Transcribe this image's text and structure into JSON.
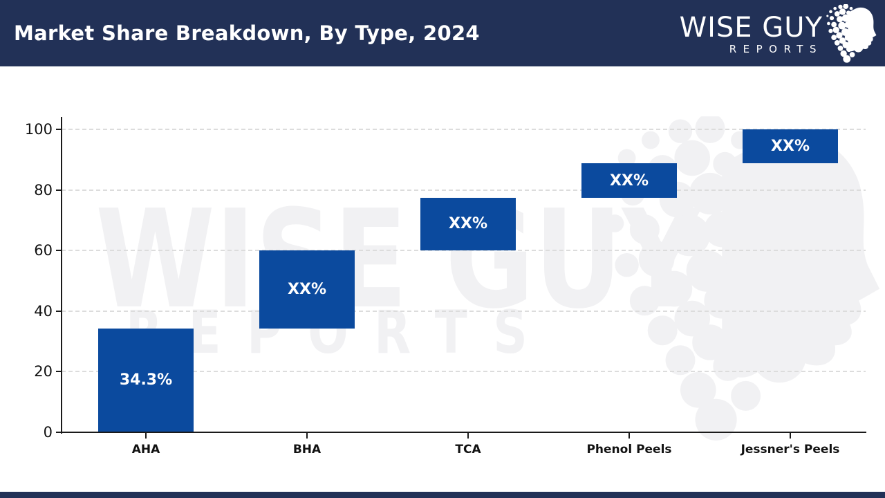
{
  "header": {
    "title": "Market Share Breakdown, By Type, 2024",
    "logo": {
      "line1": "WISE GUY",
      "line2": "REPORTS"
    }
  },
  "watermark": {
    "line1": "WISE GUY",
    "line2": "REPORTS"
  },
  "colors": {
    "header_navy": "#223157",
    "bar_blue": "#0b4a9e",
    "grid_gray": "#dcdcdc",
    "watermark_gray": "#f1f1f3"
  },
  "chart_data": {
    "type": "bar",
    "subtype": "waterfall",
    "title": "Market Share Breakdown, By Type, 2024",
    "categories": [
      "AHA",
      "BHA",
      "TCA",
      "Phenol Peels",
      "Jessner's Peels"
    ],
    "segments": [
      {
        "category": "AHA",
        "start": 0,
        "end": 34.3,
        "label": "34.3%"
      },
      {
        "category": "BHA",
        "start": 34.3,
        "end": 60,
        "label": "XX%"
      },
      {
        "category": "TCA",
        "start": 60,
        "end": 77.5,
        "label": "XX%"
      },
      {
        "category": "Phenol Peels",
        "start": 77.5,
        "end": 88.7,
        "label": "XX%"
      },
      {
        "category": "Jessner's Peels",
        "start": 88.7,
        "end": 100,
        "label": "XX%"
      }
    ],
    "xlabel": "",
    "ylabel": "",
    "yticks": [
      0,
      20,
      40,
      60,
      80,
      100
    ],
    "ylim": [
      0,
      105
    ],
    "grid": "horizontal-dashed",
    "legend": "none",
    "bar_color": "#0b4a9e",
    "bar_label_color": "#ffffff"
  }
}
